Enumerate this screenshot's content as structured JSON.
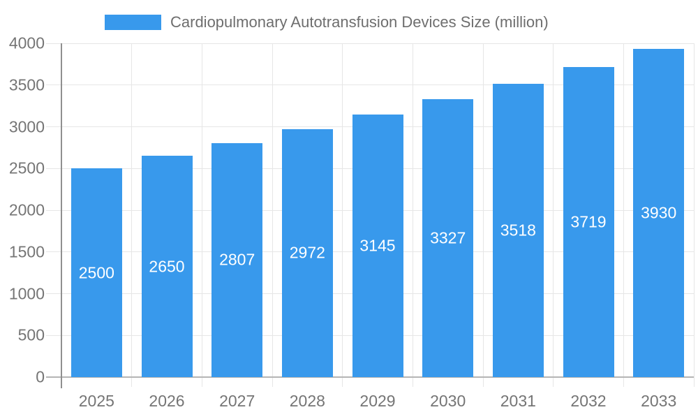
{
  "legend": {
    "swatch_color": "#3899EC",
    "label": "Cardiopulmonary Autotransfusion Devices Size (million)"
  },
  "chart_data": {
    "type": "bar",
    "title": "Cardiopulmonary Autotransfusion Devices Size (million)",
    "series": [
      {
        "name": "Cardiopulmonary Autotransfusion Devices Size (million)",
        "values": [
          2500,
          2650,
          2807,
          2972,
          3145,
          3327,
          3518,
          3719,
          3930
        ]
      }
    ],
    "categories": [
      "2025",
      "2026",
      "2027",
      "2028",
      "2029",
      "2030",
      "2031",
      "2032",
      "2033"
    ],
    "xlabel": "",
    "ylabel": "",
    "ylim": [
      0,
      4000
    ],
    "ytick_step": 500,
    "ytick_labels": [
      "0",
      "500",
      "1000",
      "1500",
      "2000",
      "2500",
      "3000",
      "3500",
      "4000"
    ],
    "grid": true,
    "legend_position": "top-left",
    "value_label_position": "inside-center",
    "colors": {
      "bar": "#3899EC",
      "value_label": "#ffffff",
      "tick_label": "#757575",
      "legend_text": "#6e6e6e",
      "gridline": "#e6e6e6",
      "x_axis_line": "#b5b5b5",
      "y_axis_line": "#8f8f8f",
      "background": "#ffffff"
    }
  }
}
